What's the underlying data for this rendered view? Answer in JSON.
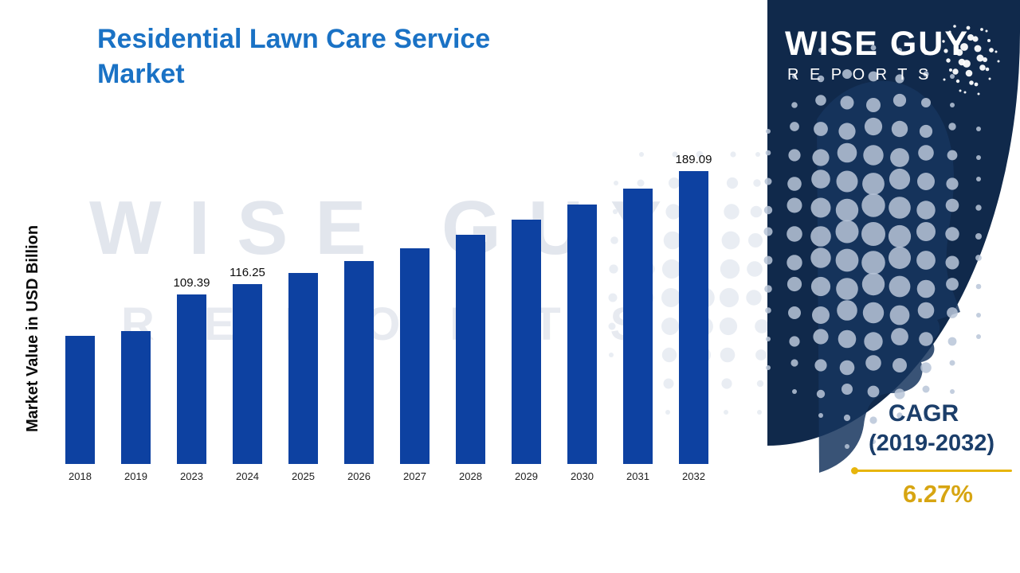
{
  "header": {
    "title": "Residential Lawn Care Service Market"
  },
  "logo": {
    "main": "WISE GUY",
    "sub": "REPORTS"
  },
  "watermark": {
    "main": "WISE GUY",
    "sub": "REPORTS"
  },
  "y_axis": {
    "label": "Market Value in USD Billion"
  },
  "cagr": {
    "label": "CAGR",
    "range": "(2019-2032)",
    "value": "6.27%"
  },
  "chart_data": {
    "type": "bar",
    "title": "Residential Lawn Care Service Market",
    "xlabel": "",
    "ylabel": "Market Value in USD Billion",
    "unit": "USD Billion",
    "categories": [
      "2018",
      "2019",
      "2023",
      "2024",
      "2025",
      "2026",
      "2027",
      "2028",
      "2029",
      "2030",
      "2031",
      "2032"
    ],
    "values": [
      82.5,
      85.75,
      109.39,
      116.25,
      123.54,
      131.28,
      139.52,
      148.26,
      157.56,
      167.44,
      177.94,
      189.09
    ],
    "bar_labels": [
      "",
      "",
      "109.39",
      "116.25",
      "",
      "",
      "",
      "",
      "",
      "",
      "",
      "189.09"
    ],
    "ylim": [
      0,
      200
    ],
    "grid": false,
    "legend": "none",
    "bar_color": "#0d41a1",
    "annotations": [
      "CAGR (2019-2032) = 6.27%"
    ]
  },
  "colors": {
    "navy_panel": "#10294b",
    "bar": "#0d41a1",
    "title_blue": "#1a72c5",
    "gold_text": "#d7a512",
    "gold_line": "#e7b50c",
    "cagr_text": "#1b3e6a",
    "watermark_gray": "#e2e6ed",
    "face_dots": "#b9c6d8"
  }
}
